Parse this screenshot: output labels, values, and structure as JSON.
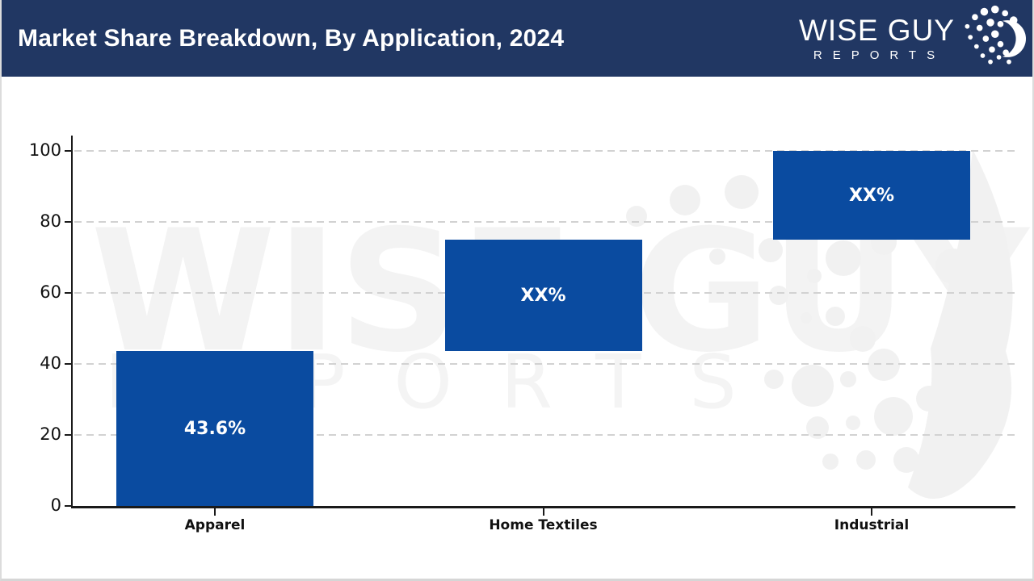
{
  "header": {
    "title": "Market Share Breakdown, By Application, 2024"
  },
  "brand": {
    "name": "WISE GUY",
    "subtitle": "REPORTS"
  },
  "watermark": {
    "line1": "WISE GUY",
    "line2": "REPORTS"
  },
  "colors": {
    "header_bg": "#213763",
    "bar": "#0a4ba0",
    "grid": "#d2d2d2",
    "axis": "#1a1a1a",
    "bar_label": "#ffffff",
    "watermark": "#f2f2f2"
  },
  "chart_data": {
    "type": "bar",
    "subtype": "waterfall",
    "title": "Market Share Breakdown, By Application, 2024",
    "xlabel": "",
    "ylabel": "",
    "categories": [
      "Apparel",
      "Home Textiles",
      "Industrial"
    ],
    "segments": [
      {
        "category": "Apparel",
        "start": 0,
        "end": 43.6,
        "label": "43.6%"
      },
      {
        "category": "Home Textiles",
        "start": 43.6,
        "end": 75,
        "label": "XX%"
      },
      {
        "category": "Industrial",
        "start": 75,
        "end": 100,
        "label": "XX%"
      }
    ],
    "ylim": [
      0,
      100
    ],
    "yticks": [
      0,
      20,
      40,
      60,
      80,
      100
    ],
    "grid": "horizontal-dashed",
    "legend": "none"
  }
}
